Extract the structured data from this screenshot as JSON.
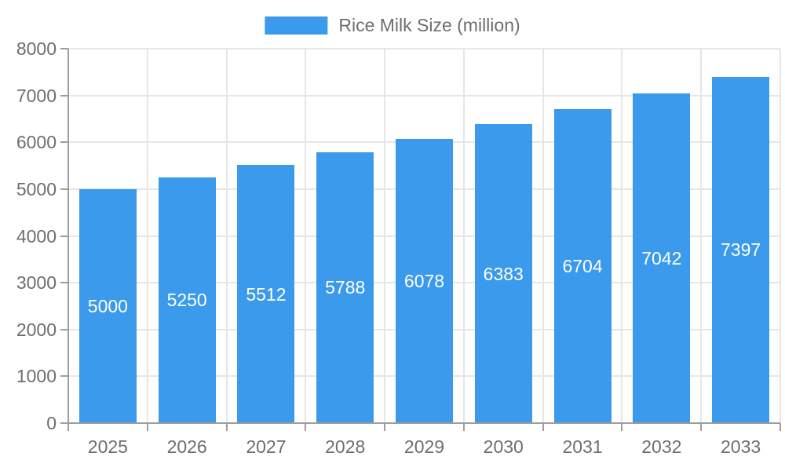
{
  "chart_data": {
    "type": "bar",
    "title": "Rice Milk Size (million)",
    "categories": [
      "2025",
      "2026",
      "2027",
      "2028",
      "2029",
      "2030",
      "2031",
      "2032",
      "2033"
    ],
    "values": [
      5000,
      5250,
      5512,
      5788,
      6078,
      6383,
      6704,
      7042,
      7397
    ],
    "xlabel": "",
    "ylabel": "",
    "ylim": [
      0,
      8000
    ],
    "ytick_step": 1000,
    "grid": true,
    "legend_position": "top",
    "colors": {
      "bar": "#3B9AEC",
      "bar_label": "#FFFFFF",
      "axis_text": "#6E6E6E",
      "gridline": "#E6E6E6",
      "axis_line": "#9E9E9E",
      "background": "#FFFFFF"
    }
  }
}
